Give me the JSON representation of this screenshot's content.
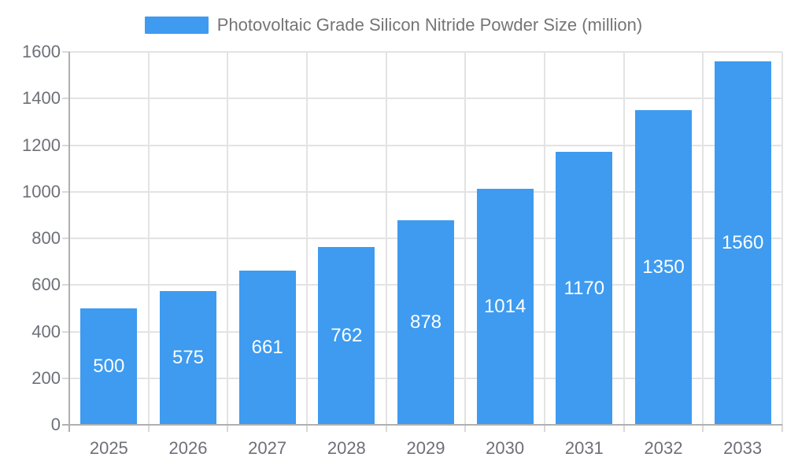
{
  "legend": {
    "label": "Photovoltaic Grade Silicon Nitride Powder Size (million)"
  },
  "chart_data": {
    "type": "bar",
    "title": "Photovoltaic Grade Silicon Nitride Powder Size (million)",
    "categories": [
      "2025",
      "2026",
      "2027",
      "2028",
      "2029",
      "2030",
      "2031",
      "2032",
      "2033"
    ],
    "values": [
      500,
      575,
      661,
      762,
      878,
      1014,
      1170,
      1350,
      1560
    ],
    "xlabel": "",
    "ylabel": "",
    "ylim": [
      0,
      1600
    ],
    "ytick_interval": 200,
    "ytick_labels": [
      "0",
      "200",
      "400",
      "600",
      "800",
      "1000",
      "1200",
      "1400",
      "1600"
    ],
    "grid": true,
    "legend_position": "top",
    "show_bar_labels": true,
    "colors": {
      "bar": "#3e9bf0",
      "bar_label": "#ffffff",
      "legend_text": "#757575",
      "axis_label": "#6e7079",
      "axis_line": "#b0b0b0",
      "tick": "#d9d9d9",
      "grid_line": "#e3e3e3",
      "background": "#ffffff"
    }
  }
}
